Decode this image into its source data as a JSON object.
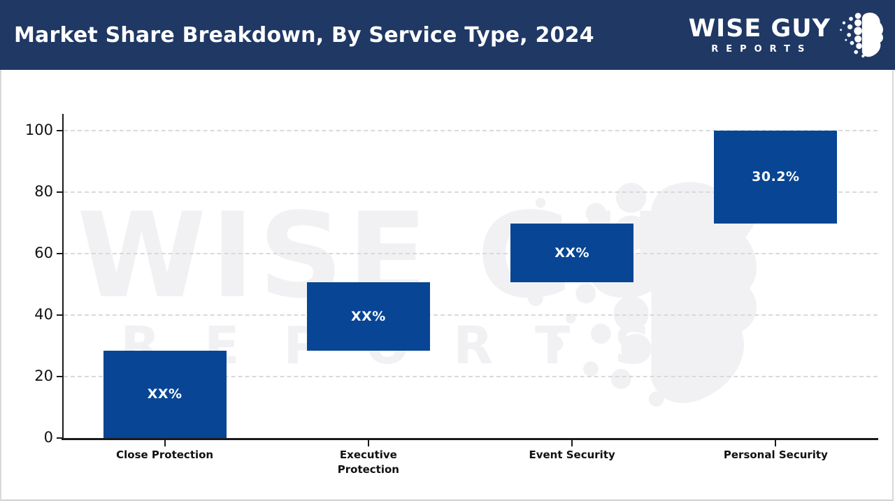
{
  "header": {
    "title": "Market Share Breakdown, By Service Type, 2024",
    "logo": {
      "line1": "WISE GUY",
      "line2": "REPORTS"
    }
  },
  "watermark": {
    "line1": "WISE GUY",
    "line2": "REPORTS"
  },
  "chart_data": {
    "type": "bar",
    "subtype": "waterfall-floating-segments",
    "title": "Market Share Breakdown, By Service Type, 2024",
    "categories": [
      "Close Protection",
      "Executive Protection",
      "Event Security",
      "Personal Security"
    ],
    "segments": [
      {
        "category": "Close Protection",
        "label": "XX%",
        "start": 0,
        "end": 28.5
      },
      {
        "category": "Executive Protection",
        "label": "XX%",
        "start": 28.5,
        "end": 50.7
      },
      {
        "category": "Event Security",
        "label": "XX%",
        "start": 50.7,
        "end": 69.8
      },
      {
        "category": "Personal Security",
        "label": "30.2%",
        "start": 69.8,
        "end": 100
      }
    ],
    "values_masked": [
      "XX%",
      "XX%",
      "XX%",
      "30.2%"
    ],
    "yticks": [
      0,
      20,
      40,
      60,
      80,
      100
    ],
    "ylim": [
      0,
      100
    ],
    "xlabel": "",
    "ylabel": "",
    "grid": "horizontal-dashed",
    "legend": "none",
    "bar_color": "#084594",
    "bar_label_color": "#ffffff"
  },
  "colors": {
    "header_bg": "#1f3864",
    "bar": "#084594",
    "grid": "#d9d9d9",
    "axis": "#1a1a1a",
    "watermark": "#f1f1f4",
    "card_border": "#d9d9d9"
  }
}
